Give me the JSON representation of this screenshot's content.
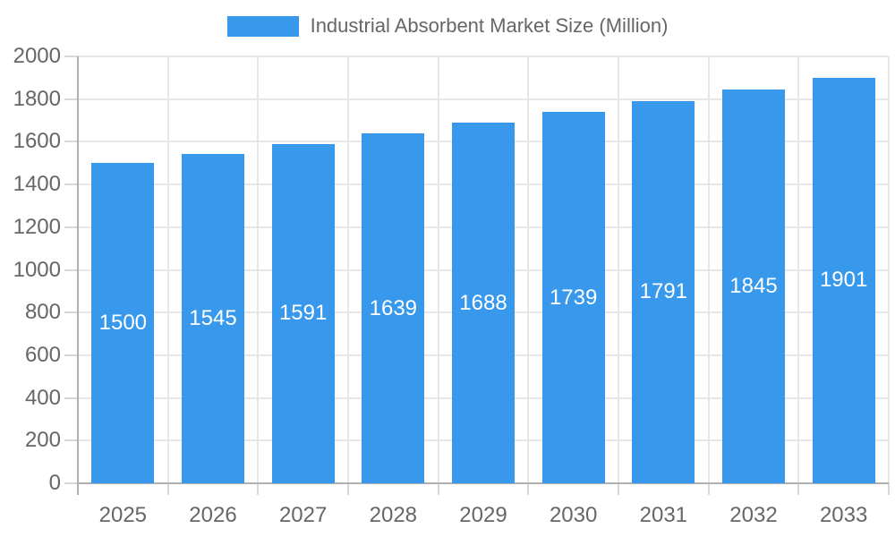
{
  "legend": {
    "label": "Industrial Absorbent Market Size (Million)"
  },
  "chart_data": {
    "type": "bar",
    "title": "Industrial Absorbent Market Size (Million)",
    "categories": [
      "2025",
      "2026",
      "2027",
      "2028",
      "2029",
      "2030",
      "2031",
      "2032",
      "2033"
    ],
    "values": [
      1500,
      1545,
      1591,
      1639,
      1688,
      1739,
      1791,
      1845,
      1901
    ],
    "series": [
      {
        "name": "Industrial Absorbent Market Size (Million)",
        "values": [
          1500,
          1545,
          1591,
          1639,
          1688,
          1739,
          1791,
          1845,
          1901
        ]
      }
    ],
    "xlabel": "",
    "ylabel": "",
    "ylim": [
      0,
      2000
    ],
    "yticks": [
      0,
      200,
      400,
      600,
      800,
      1000,
      1200,
      1400,
      1600,
      1800,
      2000
    ],
    "grid": true,
    "legend_position": "top",
    "value_labels": "inside-center"
  },
  "colors": {
    "bar": "#3899ec",
    "gridline": "#e7e7e7",
    "axis_line": "#b0b0b0",
    "tick": "#d8d8d8",
    "axis_text": "#666666",
    "value_label_text": "#ffffff",
    "background": "#ffffff"
  }
}
